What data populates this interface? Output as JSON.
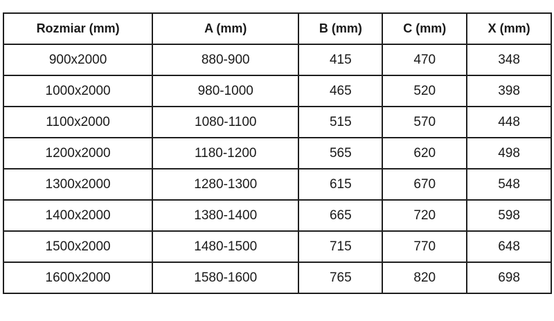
{
  "chart_data": {
    "type": "table",
    "title": "",
    "columns": [
      "Rozmiar (mm)",
      "A (mm)",
      "B (mm)",
      "C (mm)",
      "X (mm)"
    ],
    "rows": [
      [
        "900x2000",
        "880-900",
        "415",
        "470",
        "348"
      ],
      [
        "1000x2000",
        "980-1000",
        "465",
        "520",
        "398"
      ],
      [
        "1100x2000",
        "1080-1100",
        "515",
        "570",
        "448"
      ],
      [
        "1200x2000",
        "1180-1200",
        "565",
        "620",
        "498"
      ],
      [
        "1300x2000",
        "1280-1300",
        "615",
        "670",
        "548"
      ],
      [
        "1400x2000",
        "1380-1400",
        "665",
        "720",
        "598"
      ],
      [
        "1500x2000",
        "1480-1500",
        "715",
        "770",
        "648"
      ],
      [
        "1600x2000",
        "1580-1600",
        "765",
        "820",
        "698"
      ]
    ],
    "layout": {
      "grid": "all-borders",
      "border_color": "#1f1f1f",
      "background": "#ffffff",
      "header_bold": true
    }
  }
}
